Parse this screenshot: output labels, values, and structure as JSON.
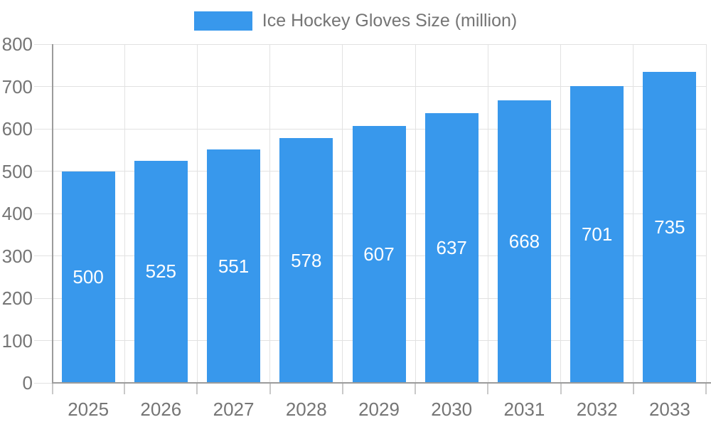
{
  "legend": {
    "label": "Ice Hockey Gloves Size (million)"
  },
  "chart_data": {
    "type": "bar",
    "title": "Ice Hockey Gloves Size (million)",
    "categories": [
      "2025",
      "2026",
      "2027",
      "2028",
      "2029",
      "2030",
      "2031",
      "2032",
      "2033"
    ],
    "series": [
      {
        "name": "Ice Hockey Gloves Size (million)",
        "values": [
          500,
          525,
          551,
          578,
          607,
          637,
          668,
          701,
          735
        ]
      }
    ],
    "value_labels_shown": true,
    "xlabel": "",
    "ylabel": "",
    "ylim": [
      0,
      800
    ],
    "y_ticks": [
      0,
      100,
      200,
      300,
      400,
      500,
      600,
      700,
      800
    ],
    "grid": true,
    "legend_position": "top",
    "colors": {
      "bar": "#3898EC",
      "value_label": "#FFFFFF",
      "axis_text": "#757575",
      "gridline": "#E2E2E2",
      "axis_line": "#9B9B9B",
      "tick": "#C9C9C9"
    }
  }
}
